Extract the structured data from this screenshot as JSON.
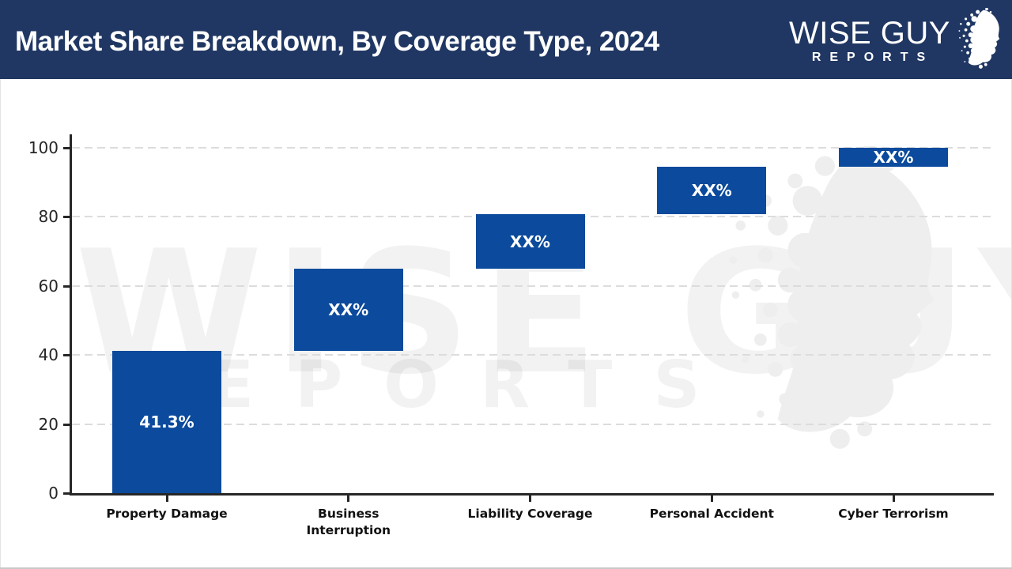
{
  "header": {
    "title": "Market Share Breakdown, By Coverage Type, 2024",
    "logo": {
      "wordmark": "WISE GUY",
      "sub": "REPORTS"
    }
  },
  "watermark": {
    "wordmark": "WISE GUY",
    "sub": "REPORTS"
  },
  "colors": {
    "header_bg": "#203763",
    "bar": "#0b4a9c",
    "bar_label": "#ffffff",
    "axis": "#262626",
    "grid": "#dcdcdc",
    "tick_label": "#262626"
  },
  "chart_data": {
    "type": "bar",
    "variant": "waterfall",
    "title": "Market Share Breakdown, By Coverage Type, 2024",
    "categories": [
      "Property Damage",
      "Business\nInterruption",
      "Liability Coverage",
      "Personal Accident",
      "Cyber Terrorism"
    ],
    "bars": [
      {
        "category": "Property Damage",
        "start": 0,
        "end": 41.3,
        "label": "41.3%"
      },
      {
        "category": "Business Interruption",
        "start": 41.3,
        "end": 64.9,
        "label": "XX%"
      },
      {
        "category": "Liability Coverage",
        "start": 64.9,
        "end": 80.7,
        "label": "XX%"
      },
      {
        "category": "Personal Accident",
        "start": 80.7,
        "end": 94.4,
        "label": "XX%"
      },
      {
        "category": "Cyber Terrorism",
        "start": 94.4,
        "end": 100,
        "label": "XX%"
      }
    ],
    "ylim": [
      0,
      100
    ],
    "yticks": [
      0,
      20,
      40,
      60,
      80,
      100
    ],
    "grid": {
      "axis": "y",
      "style": "dashed"
    },
    "legend": "none"
  }
}
